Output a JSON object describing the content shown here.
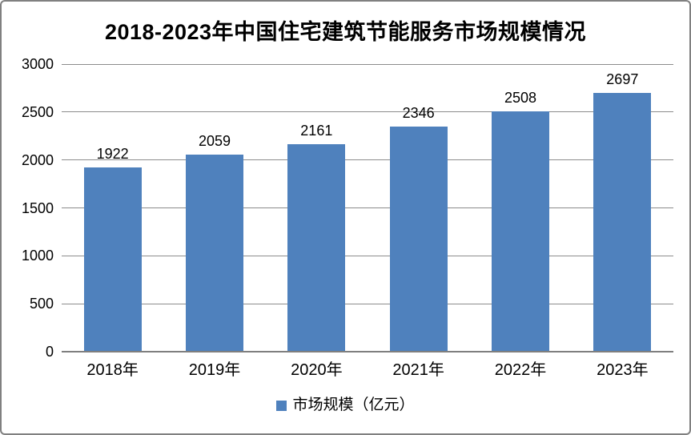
{
  "page": {
    "background": "#ffffff",
    "border_color": "#808080"
  },
  "chart_data": {
    "type": "bar",
    "title": "2018-2023年中国住宅建筑节能服务市场规模情况",
    "categories": [
      "2018年",
      "2019年",
      "2020年",
      "2021年",
      "2022年",
      "2023年"
    ],
    "series": [
      {
        "name": "市场规模（亿元）",
        "values": [
          1922,
          2059,
          2161,
          2346,
          2508,
          2697
        ]
      }
    ],
    "xlabel": "",
    "ylabel": "",
    "ylim": [
      0,
      3000
    ],
    "yticks": [
      0,
      500,
      1000,
      1500,
      2000,
      2500,
      3000
    ],
    "grid": true,
    "data_labels": true,
    "legend_position": "bottom",
    "bar_color": "#4F81BD",
    "gridline_color": "#8C8C8C",
    "axis_color": "#7F7F7F",
    "text_color": "#000000"
  },
  "legend": {
    "label": "市场规模（亿元）",
    "marker_color": "#4F81BD"
  }
}
